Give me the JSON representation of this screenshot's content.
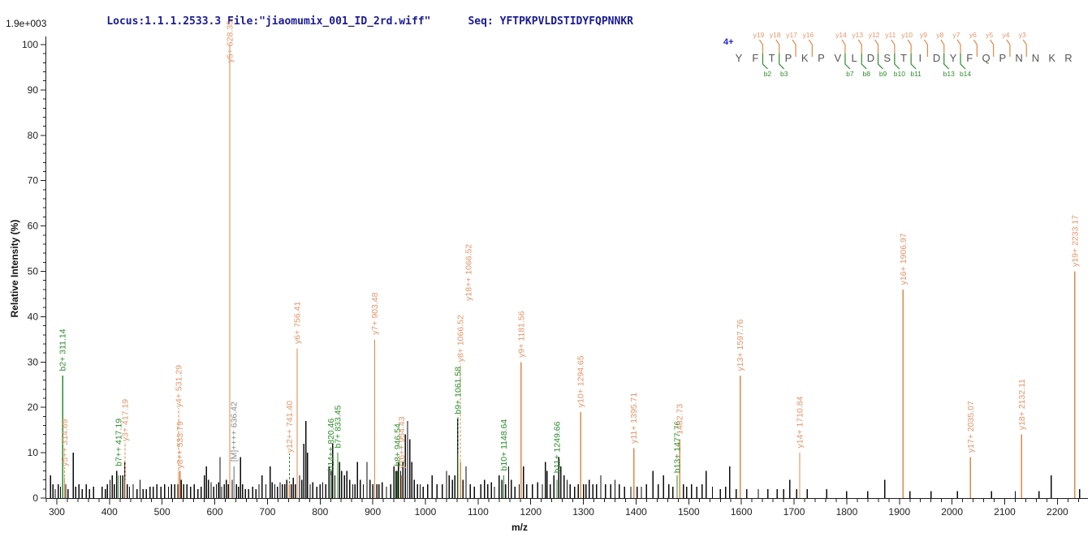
{
  "header": {
    "locus_file": "Locus:1.1.1.2533.3 File:\"jiaomumix_001_ID_2rd.wiff\"",
    "seq": "Seq: YFTPKPVLDSTIDYFQPNNKR",
    "scale_annotation": "1.9e+003"
  },
  "peptide": {
    "charge_label": "4+",
    "residues": [
      "Y",
      "F",
      "T",
      "P",
      "K",
      "P",
      "V",
      "L",
      "D",
      "S",
      "T",
      "I",
      "D",
      "Y",
      "F",
      "Q",
      "P",
      "N",
      "N",
      "K",
      "R"
    ],
    "y_ions": [
      {
        "name": "y19",
        "boundary": 2
      },
      {
        "name": "y18",
        "boundary": 3
      },
      {
        "name": "y17",
        "boundary": 4
      },
      {
        "name": "y16",
        "boundary": 5
      },
      {
        "name": "y14",
        "boundary": 7
      },
      {
        "name": "y13",
        "boundary": 8
      },
      {
        "name": "y12",
        "boundary": 9
      },
      {
        "name": "y11",
        "boundary": 10
      },
      {
        "name": "y10",
        "boundary": 11
      },
      {
        "name": "y9",
        "boundary": 12
      },
      {
        "name": "y8",
        "boundary": 13
      },
      {
        "name": "y7",
        "boundary": 14
      },
      {
        "name": "y6",
        "boundary": 15
      },
      {
        "name": "y5",
        "boundary": 16
      },
      {
        "name": "y4",
        "boundary": 17
      },
      {
        "name": "y3",
        "boundary": 18
      }
    ],
    "b_ions": [
      {
        "name": "b2",
        "boundary": 2
      },
      {
        "name": "b3",
        "boundary": 3
      },
      {
        "name": "b7",
        "boundary": 7
      },
      {
        "name": "b8",
        "boundary": 8
      },
      {
        "name": "b9",
        "boundary": 9
      },
      {
        "name": "b10",
        "boundary": 10
      },
      {
        "name": "b11",
        "boundary": 11
      },
      {
        "name": "b13",
        "boundary": 13
      },
      {
        "name": "b14",
        "boundary": 14
      }
    ]
  },
  "colors": {
    "y_line": "#dd8a4a",
    "y_label": "#e3956b",
    "b_line": "#2c8c2c",
    "b_label": "#2c8c2c",
    "precursor_line": "#9797a8",
    "precursor_label": "#8a8a8a",
    "peak": "#0a0a0a",
    "title": "#1b1b96",
    "charge": "#2323cc",
    "axis": "#1c1c1c",
    "tick_label": "#222222",
    "residue": "#555555"
  },
  "chart_data": {
    "type": "bar",
    "subtype": "ms2-spectrum",
    "title": "Locus:1.1.1.2533.3 File:\"jiaomumix_001_ID_2rd.wiff\"   Seq: YFTPKPVLDSTIDYFQPNNKR",
    "xlabel": "m/z",
    "ylabel": "Relative  Intensity (%)",
    "x_axis": {
      "min": 280,
      "max": 2258,
      "major_ticks": [
        300,
        400,
        500,
        600,
        700,
        800,
        900,
        1000,
        1100,
        1200,
        1300,
        1400,
        1500,
        1600,
        1700,
        1800,
        1900,
        2000,
        2100,
        2200
      ],
      "minor_step": 20
    },
    "y_axis": {
      "min": 0,
      "max": 100,
      "major_ticks": [
        0,
        10,
        20,
        30,
        40,
        50,
        60,
        70,
        80,
        90,
        100
      ],
      "minor_step": 2
    },
    "grid": false,
    "legend": "none",
    "labeled_peaks": [
      {
        "label": "b2+ 311.14",
        "mz": 311.14,
        "pct": 27,
        "label_from": 28,
        "series": "b"
      },
      {
        "label": "y5++ 314.69",
        "mz": 314.69,
        "pct": 4.5,
        "label_from": 7,
        "series": "y",
        "dashed": true
      },
      {
        "label": "b7++ 417.19",
        "mz": 417.19,
        "pct": 5,
        "label_from": 7,
        "series": "b"
      },
      {
        "label": "y3+ 417.19",
        "mz": 417.19,
        "dx": 8,
        "pct": 4,
        "label_from": 12.5,
        "series": "y",
        "dashed": true
      },
      {
        "label": "y4+ 531.29",
        "mz": 531.29,
        "pct": 6,
        "label_from": 20,
        "series": "y",
        "dashed": true
      },
      {
        "label": "y8++ 533.79",
        "mz": 533.79,
        "pct": 6,
        "label_from": 6.5,
        "series": "y"
      },
      {
        "label": "y5+ 628.35",
        "mz": 628.35,
        "pct": 100,
        "label_from": 96,
        "series": "y"
      },
      {
        "label": "[M]++++ 636.42",
        "mz": 636.42,
        "pct": 7,
        "label_from": 8,
        "series": "precursor"
      },
      {
        "label": "y12++ 741.40",
        "mz": 741.4,
        "pct": 3,
        "label_from": 10,
        "series": "y",
        "dashed": true,
        "leader_series": "b"
      },
      {
        "label": "y6+ 756.41",
        "mz": 756.41,
        "pct": 33,
        "label_from": 34,
        "series": "y"
      },
      {
        "label": "b14++ 820.46",
        "mz": 820.46,
        "pct": 5,
        "label_from": 6,
        "series": "b"
      },
      {
        "label": "b7+ 833.45",
        "mz": 833.45,
        "pct": 10,
        "label_from": 11,
        "series": "b"
      },
      {
        "label": "y7+ 903.48",
        "mz": 903.48,
        "pct": 35,
        "label_from": 36,
        "series": "y"
      },
      {
        "label": "b8+ 946.54",
        "mz": 946.54,
        "pct": 6,
        "label_from": 7,
        "series": "b"
      },
      {
        "label": "y16++ 954.43",
        "mz": 954.43,
        "pct": 5,
        "label_from": 6.5,
        "series": "y"
      },
      {
        "label": "b9+ 1061.58",
        "mz": 1061.58,
        "pct": 10,
        "label_from": 18.5,
        "series": "b",
        "dashed": true
      },
      {
        "label": "y8+ 1066.52",
        "mz": 1066.52,
        "pct": 8,
        "label_from": 30,
        "series": "y",
        "dashed": true
      },
      {
        "label": "y18++ 1066.52",
        "mz": 1066.52,
        "dx": 10,
        "label_only": true,
        "label_from": 43.5,
        "series": "y"
      },
      {
        "label": "b10+ 1148.64",
        "mz": 1148.64,
        "pct": 5,
        "label_from": 6,
        "series": "b"
      },
      {
        "label": "y9+ 1181.56",
        "mz": 1181.56,
        "pct": 30,
        "label_from": 31,
        "series": "y"
      },
      {
        "label": "b11+ 1249.66",
        "mz": 1249.66,
        "pct": 4,
        "label_from": 5.5,
        "series": "b"
      },
      {
        "label": "y10+ 1294.65",
        "mz": 1294.65,
        "pct": 19,
        "label_from": 20,
        "series": "y"
      },
      {
        "label": "y11+ 1395.71",
        "mz": 1395.71,
        "pct": 11,
        "label_from": 12,
        "series": "y"
      },
      {
        "label": "b13+ 1477.76",
        "mz": 1477.76,
        "pct": 5,
        "label_from": 5.5,
        "series": "b"
      },
      {
        "label": "1482.73",
        "mz": 1482.73,
        "pct": 13,
        "label_from": 14,
        "series": "y"
      },
      {
        "label": "y13+ 1597.76",
        "mz": 1597.76,
        "pct": 27,
        "label_from": 28,
        "series": "y"
      },
      {
        "label": "y14+ 1710.84",
        "mz": 1710.84,
        "pct": 10,
        "label_from": 11,
        "series": "y"
      },
      {
        "label": "y16+ 1906.97",
        "mz": 1906.97,
        "pct": 46,
        "label_from": 47,
        "series": "y"
      },
      {
        "label": "y17+ 2035.07",
        "mz": 2035.07,
        "pct": 9,
        "label_from": 10,
        "series": "y"
      },
      {
        "label": "y18+ 2132.11",
        "mz": 2132.11,
        "pct": 14,
        "label_from": 15,
        "series": "y"
      },
      {
        "label": "y19+ 2233.17",
        "mz": 2233.17,
        "pct": 50,
        "label_from": 51,
        "series": "y"
      }
    ],
    "background_peaks": [
      [
        288,
        5
      ],
      [
        293,
        3
      ],
      [
        297,
        2
      ],
      [
        303,
        3
      ],
      [
        307,
        2.5
      ],
      [
        317,
        3
      ],
      [
        321,
        2
      ],
      [
        331,
        10
      ],
      [
        336,
        2.5
      ],
      [
        342,
        3
      ],
      [
        348,
        2
      ],
      [
        356,
        3
      ],
      [
        362,
        2
      ],
      [
        370,
        2.5
      ],
      [
        386,
        2.5
      ],
      [
        392,
        2
      ],
      [
        396,
        3
      ],
      [
        401,
        4
      ],
      [
        405,
        5
      ],
      [
        409,
        3
      ],
      [
        414,
        6
      ],
      [
        421,
        5
      ],
      [
        425,
        5
      ],
      [
        429,
        8
      ],
      [
        434,
        3
      ],
      [
        438,
        2.5
      ],
      [
        445,
        3
      ],
      [
        452,
        2
      ],
      [
        458,
        4
      ],
      [
        464,
        2
      ],
      [
        470,
        2
      ],
      [
        477,
        2.5
      ],
      [
        483,
        2.5
      ],
      [
        490,
        3
      ],
      [
        498,
        2.5
      ],
      [
        505,
        3
      ],
      [
        512,
        2.5
      ],
      [
        518,
        3
      ],
      [
        524,
        3
      ],
      [
        530,
        3
      ],
      [
        536,
        4
      ],
      [
        541,
        3
      ],
      [
        547,
        3
      ],
      [
        554,
        2.5
      ],
      [
        561,
        3
      ],
      [
        568,
        2
      ],
      [
        574,
        2.5
      ],
      [
        580,
        5
      ],
      [
        584,
        7
      ],
      [
        588,
        4
      ],
      [
        593,
        3.5
      ],
      [
        598,
        2.5
      ],
      [
        603,
        3
      ],
      [
        607,
        3.5
      ],
      [
        610,
        9
      ],
      [
        613,
        2.5
      ],
      [
        618,
        3
      ],
      [
        622,
        4
      ],
      [
        626,
        3
      ],
      [
        633,
        4
      ],
      [
        641,
        3
      ],
      [
        645,
        2.5
      ],
      [
        649,
        9
      ],
      [
        653,
        3
      ],
      [
        658,
        2
      ],
      [
        664,
        2
      ],
      [
        672,
        2.5
      ],
      [
        678,
        2
      ],
      [
        684,
        3
      ],
      [
        690,
        5
      ],
      [
        697,
        3
      ],
      [
        705,
        7
      ],
      [
        709,
        3.5
      ],
      [
        714,
        3
      ],
      [
        719,
        2.5
      ],
      [
        724,
        3.5
      ],
      [
        728,
        3
      ],
      [
        733,
        3
      ],
      [
        737,
        4
      ],
      [
        745,
        3
      ],
      [
        749,
        4.5
      ],
      [
        753,
        3
      ],
      [
        761,
        5
      ],
      [
        765,
        4
      ],
      [
        769,
        12
      ],
      [
        773,
        17
      ],
      [
        776,
        10
      ],
      [
        781,
        3
      ],
      [
        786,
        3.5
      ],
      [
        794,
        2.5
      ],
      [
        800,
        3
      ],
      [
        805,
        3.5
      ],
      [
        811,
        3
      ],
      [
        817,
        7
      ],
      [
        821,
        6
      ],
      [
        824,
        12
      ],
      [
        828,
        5
      ],
      [
        837,
        8
      ],
      [
        841,
        6
      ],
      [
        846,
        5
      ],
      [
        851,
        6
      ],
      [
        856,
        4
      ],
      [
        862,
        3
      ],
      [
        866,
        3
      ],
      [
        871,
        8
      ],
      [
        876,
        4
      ],
      [
        882,
        3
      ],
      [
        889,
        8
      ],
      [
        895,
        4
      ],
      [
        900,
        3
      ],
      [
        908,
        3
      ],
      [
        912,
        3
      ],
      [
        918,
        3.5
      ],
      [
        926,
        2.5
      ],
      [
        934,
        3
      ],
      [
        940,
        7
      ],
      [
        944,
        6
      ],
      [
        949,
        8
      ],
      [
        953,
        6
      ],
      [
        957,
        8
      ],
      [
        962,
        14
      ],
      [
        966,
        17
      ],
      [
        970,
        13
      ],
      [
        974,
        8
      ],
      [
        979,
        4
      ],
      [
        985,
        3
      ],
      [
        990,
        3
      ],
      [
        996,
        2.5
      ],
      [
        1004,
        3
      ],
      [
        1013,
        5
      ],
      [
        1022,
        3
      ],
      [
        1032,
        3
      ],
      [
        1040,
        6
      ],
      [
        1045,
        5
      ],
      [
        1051,
        4
      ],
      [
        1056,
        5
      ],
      [
        1061,
        17.5
      ],
      [
        1071,
        4
      ],
      [
        1077,
        7
      ],
      [
        1085,
        3
      ],
      [
        1093,
        2.5
      ],
      [
        1105,
        3
      ],
      [
        1112,
        4
      ],
      [
        1118,
        3
      ],
      [
        1125,
        3.5
      ],
      [
        1131,
        2.5
      ],
      [
        1140,
        5
      ],
      [
        1145,
        4
      ],
      [
        1152,
        3
      ],
      [
        1158,
        7
      ],
      [
        1163,
        4
      ],
      [
        1170,
        2.5
      ],
      [
        1178,
        3
      ],
      [
        1186,
        7
      ],
      [
        1192,
        3
      ],
      [
        1203,
        3
      ],
      [
        1213,
        3.5
      ],
      [
        1222,
        3
      ],
      [
        1228,
        8
      ],
      [
        1231,
        6
      ],
      [
        1237,
        3
      ],
      [
        1244,
        5
      ],
      [
        1253,
        9
      ],
      [
        1257,
        7
      ],
      [
        1263,
        5
      ],
      [
        1269,
        4
      ],
      [
        1275,
        3
      ],
      [
        1283,
        2.5
      ],
      [
        1290,
        3
      ],
      [
        1300,
        3
      ],
      [
        1305,
        3
      ],
      [
        1311,
        4
      ],
      [
        1318,
        3
      ],
      [
        1325,
        3
      ],
      [
        1333,
        5
      ],
      [
        1342,
        3
      ],
      [
        1352,
        3
      ],
      [
        1360,
        4
      ],
      [
        1368,
        3
      ],
      [
        1378,
        2.5
      ],
      [
        1390,
        2.5
      ],
      [
        1402,
        2.5
      ],
      [
        1410,
        2.5
      ],
      [
        1420,
        3
      ],
      [
        1432,
        6
      ],
      [
        1442,
        3
      ],
      [
        1452,
        5
      ],
      [
        1462,
        3
      ],
      [
        1470,
        2.5
      ],
      [
        1490,
        3
      ],
      [
        1496,
        2.5
      ],
      [
        1505,
        3
      ],
      [
        1515,
        2.5
      ],
      [
        1525,
        3
      ],
      [
        1533,
        6
      ],
      [
        1545,
        2.5
      ],
      [
        1560,
        2
      ],
      [
        1570,
        2.5
      ],
      [
        1578,
        7
      ],
      [
        1590,
        2
      ],
      [
        1610,
        2
      ],
      [
        1632,
        2
      ],
      [
        1650,
        2
      ],
      [
        1668,
        2
      ],
      [
        1680,
        2
      ],
      [
        1692,
        4
      ],
      [
        1705,
        2
      ],
      [
        1725,
        2
      ],
      [
        1762,
        2
      ],
      [
        1800,
        1.5
      ],
      [
        1840,
        1.5
      ],
      [
        1872,
        4
      ],
      [
        1920,
        1.5
      ],
      [
        1960,
        1.5
      ],
      [
        2010,
        1.5
      ],
      [
        2075,
        1.5
      ],
      [
        2120,
        1.5
      ],
      [
        2165,
        1.5
      ],
      [
        2188,
        5
      ],
      [
        2242,
        2
      ]
    ]
  }
}
